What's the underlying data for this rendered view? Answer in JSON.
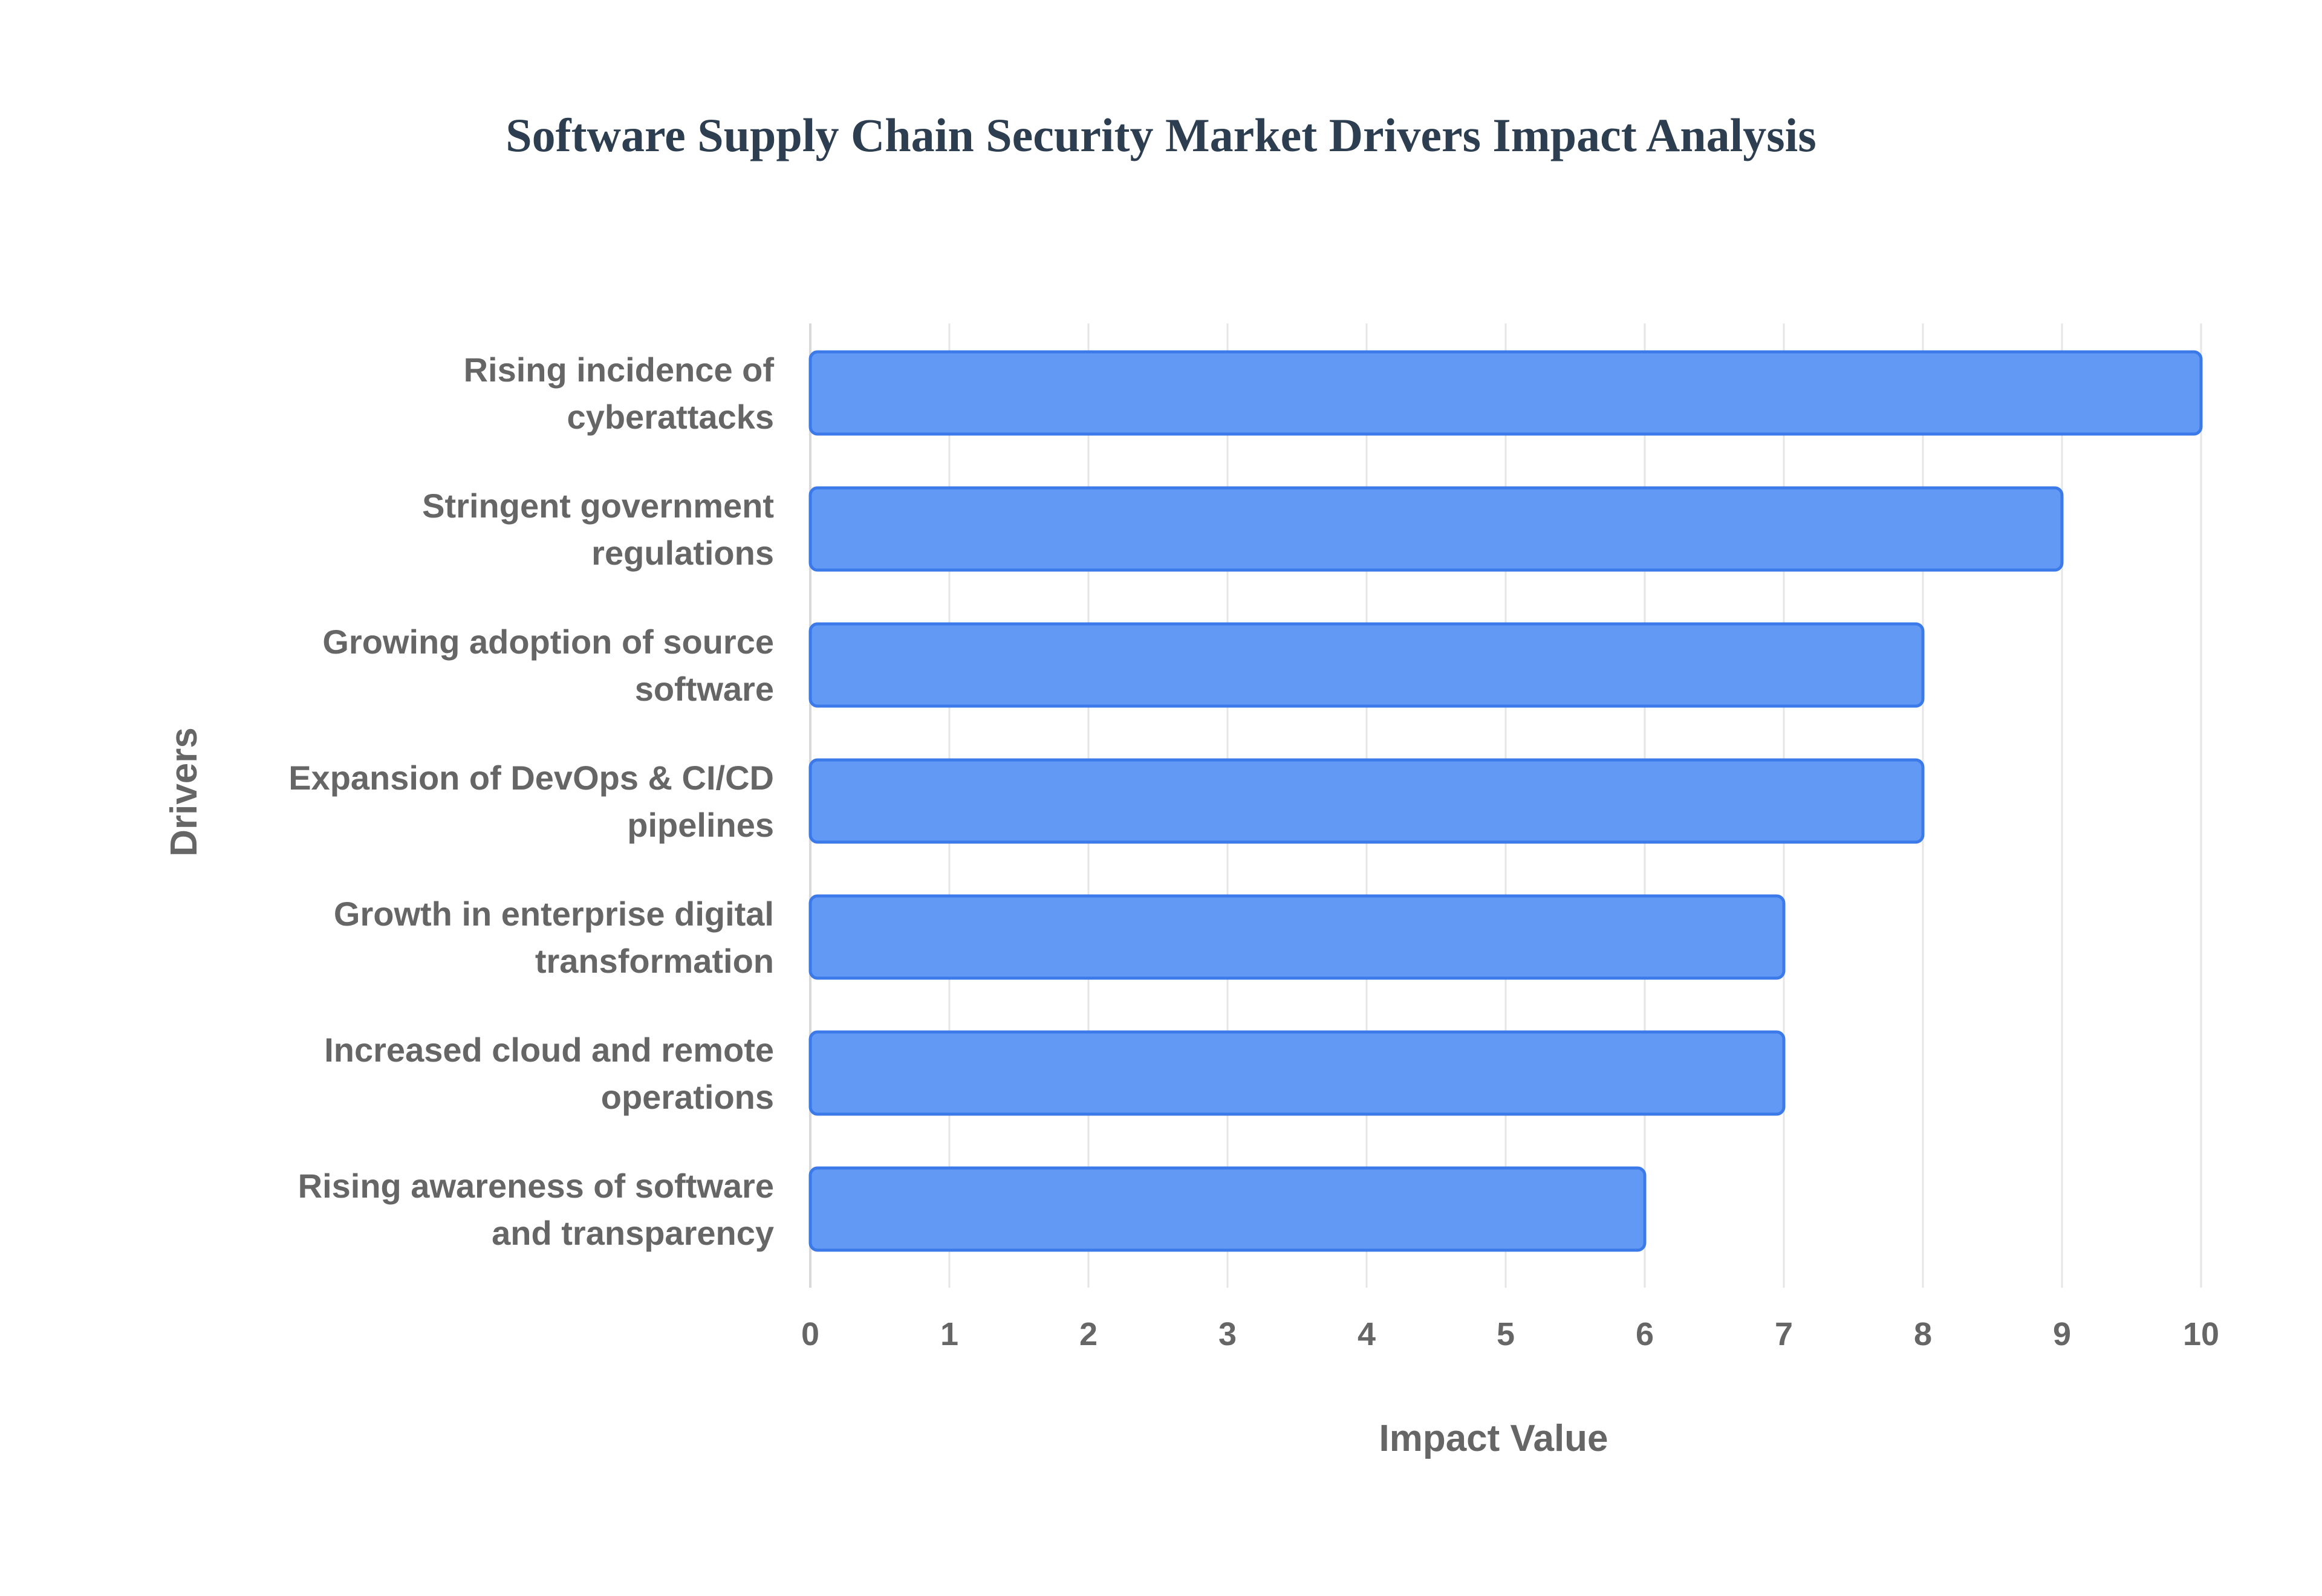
{
  "chart_data": {
    "type": "bar",
    "orientation": "horizontal",
    "title": "Software Supply Chain Security Market Drivers Impact Analysis",
    "xlabel": "Impact Value",
    "ylabel": "Drivers",
    "xlim": [
      0,
      10
    ],
    "xticks": [
      "0",
      "1",
      "2",
      "3",
      "4",
      "5",
      "6",
      "7",
      "8",
      "9",
      "10"
    ],
    "grid": true,
    "legend": "none",
    "bar_color": "#6199f5",
    "bar_border_color": "#3b7ae8",
    "categories": [
      [
        "Rising incidence of",
        "cyberattacks"
      ],
      [
        "Stringent government",
        "regulations"
      ],
      [
        "Growing adoption of source",
        "software"
      ],
      [
        "Expansion of DevOps & CI/CD",
        "pipelines"
      ],
      [
        "Growth in enterprise digital",
        "transformation"
      ],
      [
        "Increased cloud and remote",
        "operations"
      ],
      [
        "Rising awareness of software",
        "and transparency"
      ]
    ],
    "values": [
      10,
      9,
      8,
      8,
      7,
      7,
      6
    ]
  }
}
